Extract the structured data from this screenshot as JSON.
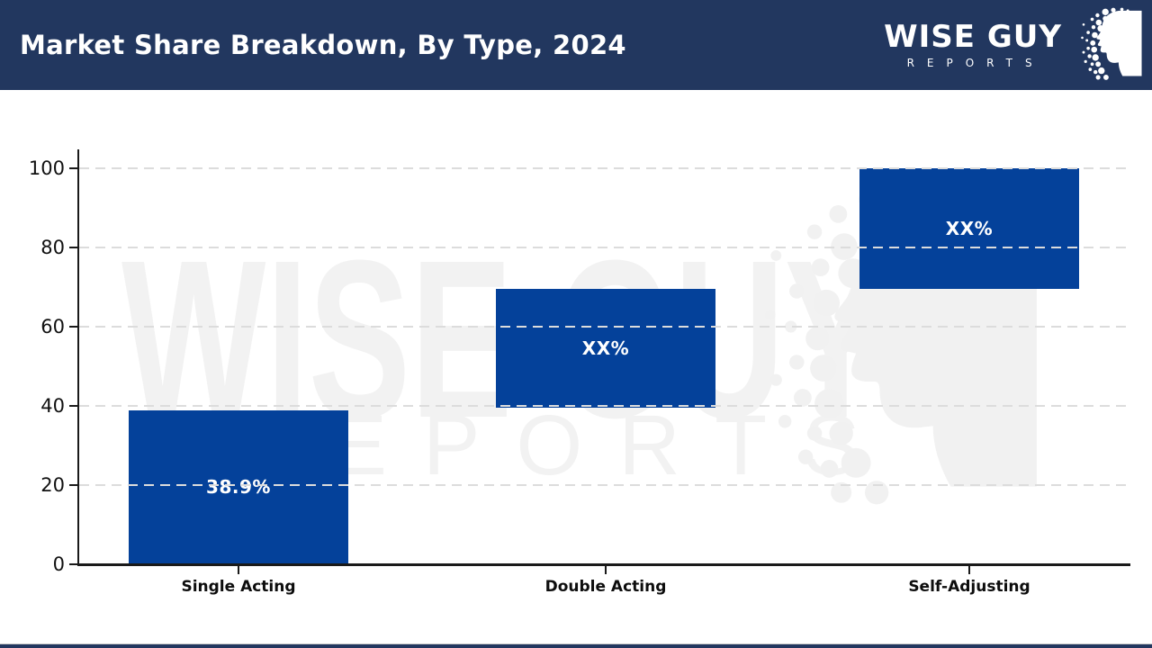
{
  "header": {
    "title": "Market Share Breakdown, By Type, 2024",
    "logo": {
      "name_line": "WISE GUY",
      "reports_line": "REPORTS"
    }
  },
  "watermark": {
    "name_line": "WISE GUY",
    "reports_line": "REPORTS"
  },
  "colors": {
    "header_bg": "#22375F",
    "bar_fill": "#04419A",
    "bar_label_text": "#FFFFFF",
    "gridline": "#DCDCDC",
    "axis": "#1A1A1A",
    "tick_label_text": "#111111",
    "watermark": "#F2F2F2"
  },
  "chart_data": {
    "type": "bar",
    "subtype": "waterfall",
    "title": "Market Share Breakdown, By Type, 2024",
    "categories": [
      "Single Acting",
      "Double Acting",
      "Self-Adjusting"
    ],
    "segments": [
      {
        "category": "Single Acting",
        "label": "38.9%",
        "start": 0,
        "end": 38.9
      },
      {
        "category": "Double Acting",
        "label": "XX%",
        "start": 39.5,
        "end": 69.5
      },
      {
        "category": "Self-Adjusting",
        "label": "XX%",
        "start": 69.5,
        "end": 100
      }
    ],
    "yticks": [
      0,
      20,
      40,
      60,
      80,
      100
    ],
    "ylim": [
      0,
      105
    ],
    "xlabel": "",
    "ylabel": "",
    "unit": "percent",
    "grid": "horizontal-dashed",
    "legend": "none"
  }
}
